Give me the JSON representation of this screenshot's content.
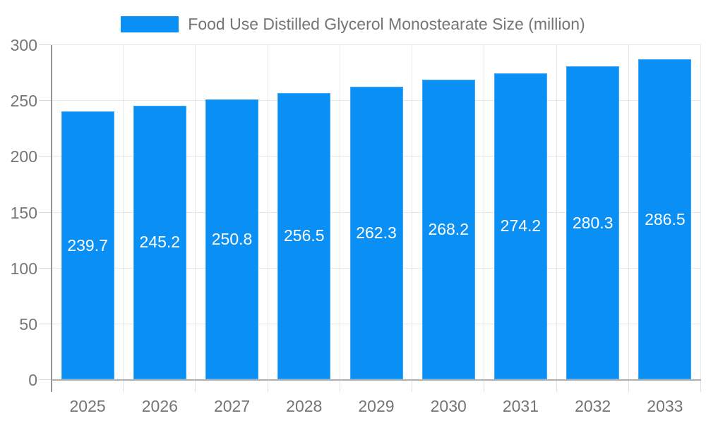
{
  "legend": {
    "label": "Food Use Distilled Glycerol Monostearate Size (million)"
  },
  "chart_data": {
    "type": "bar",
    "title": "Food Use Distilled Glycerol Monostearate Size (million)",
    "series_name": "Food Use Distilled Glycerol Monostearate Size (million)",
    "categories": [
      "2025",
      "2026",
      "2027",
      "2028",
      "2029",
      "2030",
      "2031",
      "2032",
      "2033"
    ],
    "values": [
      239.7,
      245.2,
      250.8,
      256.5,
      262.3,
      268.2,
      274.2,
      280.3,
      286.5
    ],
    "xlabel": "",
    "ylabel": "",
    "ylim": [
      0,
      300
    ],
    "yticks": [
      0,
      50,
      100,
      150,
      200,
      250,
      300
    ],
    "grid": true,
    "legend_position": "top",
    "value_label_position": "inside-center",
    "colors": {
      "bar": "#0a90f5",
      "grid": "#e8e8e8",
      "axis": "#949494",
      "baseline": "#b0b0b0",
      "tick_minor": "#d9d9d9",
      "tick_below": "#e0e0e0",
      "text": "#757575",
      "value_label": "#ffffff"
    }
  }
}
